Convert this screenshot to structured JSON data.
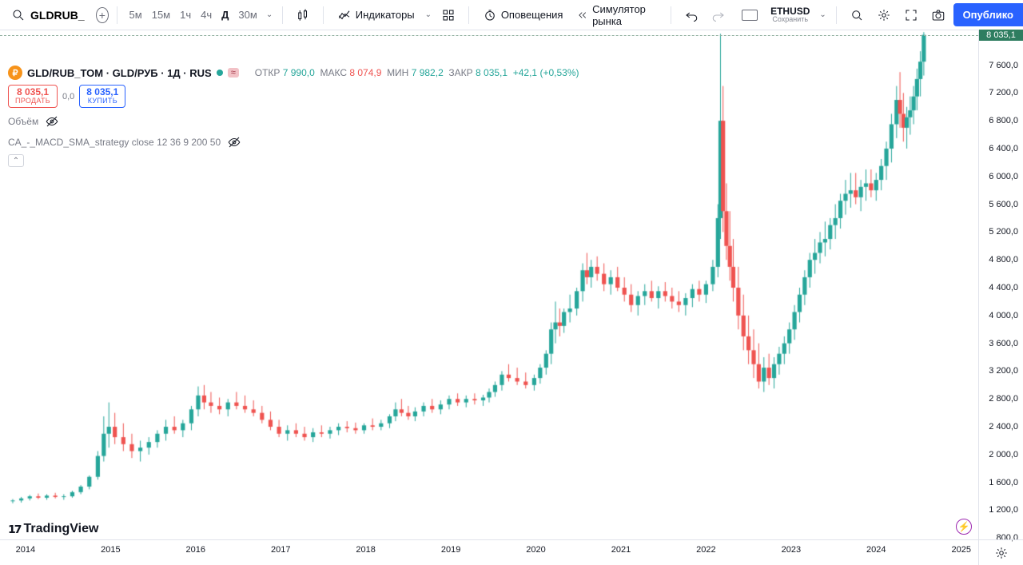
{
  "toolbar": {
    "symbol": "GLDRUB_",
    "timeframes": [
      "5м",
      "15м",
      "1ч",
      "4ч",
      "Д",
      "30м"
    ],
    "active_tf_index": 4,
    "indicators_label": "Индикаторы",
    "alerts_label": "Оповещения",
    "replay_label": "Симулятор рынка",
    "compare_symbol": "ETHUSD",
    "compare_sub": "Сохранить",
    "publish_label": "Опублико"
  },
  "legend": {
    "title": "GLD/RUB_TOM · GLD/РУБ · 1Д · RUS",
    "pill": "≈",
    "ohlc_labels": {
      "o": "ОТКР",
      "h": "МАКС",
      "l": "МИН",
      "c": "ЗАКР"
    },
    "open": "7 990,0",
    "high": "8 074,9",
    "low": "7 982,2",
    "close": "8 035,1",
    "change": "+42,1",
    "change_pct": "(+0,53%)",
    "sell_price": "8 035,1",
    "sell_label": "ПРОДАТЬ",
    "spread": "0,0",
    "buy_price": "8 035,1",
    "buy_label": "КУПИТЬ",
    "volume_label": "Объём",
    "strategy_label": "CA_-_MACD_SMA_strategy close 12 36 9 200 50"
  },
  "axis": {
    "currency": "RUB",
    "y_ticks": [
      800,
      1200,
      1600,
      2000,
      2400,
      2800,
      3200,
      3600,
      4000,
      4400,
      4800,
      5200,
      5600,
      6000,
      6400,
      6800,
      7200,
      7600
    ],
    "y_min": 780,
    "y_max": 8100,
    "current_price": "8 035,1",
    "current_price_num": 8035.1,
    "x_years": [
      2014,
      2015,
      2016,
      2017,
      2018,
      2019,
      2020,
      2021,
      2022,
      2023,
      2024,
      2025
    ],
    "x_min": 2013.7,
    "x_max": 2025.2
  },
  "chart": {
    "up_color": "#26a69a",
    "down_color": "#ef5350",
    "line_width": 1,
    "data": [
      [
        2013.85,
        1330,
        1360,
        1300,
        1340
      ],
      [
        2013.95,
        1340,
        1390,
        1310,
        1370
      ],
      [
        2014.05,
        1370,
        1420,
        1340,
        1400
      ],
      [
        2014.15,
        1400,
        1440,
        1360,
        1380
      ],
      [
        2014.25,
        1380,
        1430,
        1350,
        1410
      ],
      [
        2014.35,
        1410,
        1450,
        1370,
        1390
      ],
      [
        2014.45,
        1390,
        1430,
        1350,
        1400
      ],
      [
        2014.55,
        1400,
        1480,
        1380,
        1460
      ],
      [
        2014.65,
        1460,
        1560,
        1430,
        1540
      ],
      [
        2014.75,
        1540,
        1700,
        1500,
        1680
      ],
      [
        2014.85,
        1680,
        2050,
        1640,
        1980
      ],
      [
        2014.92,
        1980,
        2550,
        1900,
        2300
      ],
      [
        2014.98,
        2300,
        2750,
        2100,
        2400
      ],
      [
        2015.05,
        2400,
        2600,
        2150,
        2250
      ],
      [
        2015.15,
        2250,
        2450,
        2050,
        2150
      ],
      [
        2015.25,
        2150,
        2300,
        1950,
        2050
      ],
      [
        2015.35,
        2050,
        2200,
        1900,
        2100
      ],
      [
        2015.45,
        2100,
        2250,
        2000,
        2180
      ],
      [
        2015.55,
        2180,
        2350,
        2100,
        2300
      ],
      [
        2015.65,
        2300,
        2500,
        2200,
        2400
      ],
      [
        2015.75,
        2400,
        2550,
        2300,
        2350
      ],
      [
        2015.85,
        2350,
        2500,
        2250,
        2450
      ],
      [
        2015.95,
        2450,
        2700,
        2350,
        2650
      ],
      [
        2016.03,
        2650,
        2980,
        2550,
        2850
      ],
      [
        2016.1,
        2850,
        3000,
        2650,
        2750
      ],
      [
        2016.18,
        2750,
        2900,
        2600,
        2700
      ],
      [
        2016.28,
        2700,
        2820,
        2580,
        2650
      ],
      [
        2016.38,
        2650,
        2800,
        2550,
        2750
      ],
      [
        2016.48,
        2750,
        2900,
        2650,
        2700
      ],
      [
        2016.58,
        2700,
        2850,
        2600,
        2650
      ],
      [
        2016.68,
        2650,
        2780,
        2550,
        2600
      ],
      [
        2016.78,
        2600,
        2700,
        2450,
        2500
      ],
      [
        2016.88,
        2500,
        2620,
        2350,
        2400
      ],
      [
        2016.98,
        2400,
        2500,
        2250,
        2300
      ],
      [
        2017.08,
        2300,
        2420,
        2200,
        2350
      ],
      [
        2017.18,
        2350,
        2450,
        2250,
        2300
      ],
      [
        2017.28,
        2300,
        2400,
        2200,
        2250
      ],
      [
        2017.38,
        2250,
        2380,
        2180,
        2320
      ],
      [
        2017.48,
        2320,
        2420,
        2250,
        2300
      ],
      [
        2017.58,
        2300,
        2400,
        2230,
        2350
      ],
      [
        2017.68,
        2350,
        2450,
        2280,
        2400
      ],
      [
        2017.78,
        2400,
        2480,
        2320,
        2380
      ],
      [
        2017.88,
        2380,
        2460,
        2300,
        2350
      ],
      [
        2017.98,
        2350,
        2450,
        2300,
        2420
      ],
      [
        2018.08,
        2420,
        2520,
        2350,
        2400
      ],
      [
        2018.18,
        2400,
        2500,
        2350,
        2450
      ],
      [
        2018.28,
        2450,
        2580,
        2380,
        2550
      ],
      [
        2018.35,
        2550,
        2750,
        2480,
        2650
      ],
      [
        2018.42,
        2650,
        2800,
        2550,
        2600
      ],
      [
        2018.5,
        2600,
        2700,
        2500,
        2550
      ],
      [
        2018.58,
        2550,
        2680,
        2480,
        2620
      ],
      [
        2018.68,
        2620,
        2750,
        2550,
        2700
      ],
      [
        2018.78,
        2700,
        2800,
        2600,
        2650
      ],
      [
        2018.88,
        2650,
        2780,
        2580,
        2720
      ],
      [
        2018.98,
        2720,
        2850,
        2650,
        2800
      ],
      [
        2019.08,
        2800,
        2880,
        2700,
        2750
      ],
      [
        2019.18,
        2750,
        2850,
        2680,
        2800
      ],
      [
        2019.28,
        2800,
        2880,
        2720,
        2780
      ],
      [
        2019.38,
        2780,
        2860,
        2700,
        2820
      ],
      [
        2019.45,
        2820,
        2950,
        2750,
        2900
      ],
      [
        2019.52,
        2900,
        3050,
        2830,
        3000
      ],
      [
        2019.6,
        3000,
        3200,
        2920,
        3150
      ],
      [
        2019.68,
        3150,
        3300,
        3050,
        3100
      ],
      [
        2019.78,
        3100,
        3250,
        3000,
        3050
      ],
      [
        2019.88,
        3050,
        3180,
        2950,
        3000
      ],
      [
        2019.98,
        3000,
        3150,
        2920,
        3100
      ],
      [
        2020.05,
        3100,
        3300,
        3020,
        3250
      ],
      [
        2020.12,
        3250,
        3500,
        3150,
        3450
      ],
      [
        2020.18,
        3450,
        3900,
        3300,
        3800
      ],
      [
        2020.23,
        3800,
        4200,
        3600,
        3900
      ],
      [
        2020.28,
        3900,
        4100,
        3700,
        3850
      ],
      [
        2020.33,
        3850,
        4100,
        3750,
        4050
      ],
      [
        2020.4,
        4050,
        4300,
        3900,
        4100
      ],
      [
        2020.48,
        4100,
        4400,
        4000,
        4350
      ],
      [
        2020.55,
        4350,
        4750,
        4200,
        4650
      ],
      [
        2020.6,
        4650,
        4900,
        4450,
        4550
      ],
      [
        2020.65,
        4550,
        4800,
        4400,
        4700
      ],
      [
        2020.72,
        4700,
        4850,
        4500,
        4600
      ],
      [
        2020.8,
        4600,
        4750,
        4350,
        4450
      ],
      [
        2020.88,
        4450,
        4650,
        4300,
        4550
      ],
      [
        2020.96,
        4550,
        4700,
        4350,
        4400
      ],
      [
        2021.04,
        4400,
        4550,
        4200,
        4300
      ],
      [
        2021.12,
        4300,
        4450,
        4050,
        4150
      ],
      [
        2021.2,
        4150,
        4350,
        4000,
        4280
      ],
      [
        2021.28,
        4280,
        4450,
        4150,
        4350
      ],
      [
        2021.36,
        4350,
        4500,
        4200,
        4250
      ],
      [
        2021.44,
        4250,
        4420,
        4100,
        4350
      ],
      [
        2021.52,
        4350,
        4480,
        4200,
        4280
      ],
      [
        2021.6,
        4280,
        4400,
        4100,
        4200
      ],
      [
        2021.68,
        4200,
        4350,
        4050,
        4150
      ],
      [
        2021.76,
        4150,
        4320,
        4000,
        4250
      ],
      [
        2021.84,
        4250,
        4450,
        4120,
        4380
      ],
      [
        2021.92,
        4380,
        4500,
        4200,
        4300
      ],
      [
        2022.0,
        4300,
        4500,
        4180,
        4450
      ],
      [
        2022.08,
        4450,
        4800,
        4350,
        4700
      ],
      [
        2022.14,
        4700,
        5600,
        4550,
        5400
      ],
      [
        2022.17,
        5400,
        8050,
        5100,
        6800
      ],
      [
        2022.2,
        6800,
        7300,
        5200,
        5500
      ],
      [
        2022.24,
        5500,
        5900,
        4800,
        5000
      ],
      [
        2022.28,
        5000,
        5500,
        4500,
        4700
      ],
      [
        2022.32,
        4700,
        5100,
        4200,
        4400
      ],
      [
        2022.38,
        4400,
        4700,
        3800,
        4000
      ],
      [
        2022.44,
        4000,
        4300,
        3500,
        3700
      ],
      [
        2022.5,
        3700,
        4000,
        3300,
        3500
      ],
      [
        2022.56,
        3500,
        3800,
        3100,
        3300
      ],
      [
        2022.62,
        3300,
        3600,
        2950,
        3050
      ],
      [
        2022.68,
        3050,
        3400,
        2900,
        3250
      ],
      [
        2022.74,
        3250,
        3450,
        3000,
        3100
      ],
      [
        2022.8,
        3100,
        3400,
        2950,
        3300
      ],
      [
        2022.86,
        3300,
        3550,
        3150,
        3450
      ],
      [
        2022.92,
        3450,
        3700,
        3300,
        3600
      ],
      [
        2022.98,
        3600,
        3900,
        3450,
        3800
      ],
      [
        2023.04,
        3800,
        4150,
        3650,
        4050
      ],
      [
        2023.1,
        4050,
        4400,
        3900,
        4300
      ],
      [
        2023.16,
        4300,
        4650,
        4150,
        4550
      ],
      [
        2023.22,
        4550,
        4900,
        4400,
        4800
      ],
      [
        2023.28,
        4800,
        5100,
        4600,
        4900
      ],
      [
        2023.34,
        4900,
        5200,
        4750,
        5050
      ],
      [
        2023.4,
        5050,
        5350,
        4850,
        5100
      ],
      [
        2023.46,
        5100,
        5400,
        4950,
        5300
      ],
      [
        2023.52,
        5300,
        5600,
        5100,
        5400
      ],
      [
        2023.58,
        5400,
        5750,
        5250,
        5650
      ],
      [
        2023.64,
        5650,
        5950,
        5450,
        5750
      ],
      [
        2023.7,
        5750,
        6050,
        5550,
        5800
      ],
      [
        2023.76,
        5800,
        6050,
        5600,
        5700
      ],
      [
        2023.82,
        5700,
        5950,
        5500,
        5850
      ],
      [
        2023.88,
        5850,
        6100,
        5650,
        5900
      ],
      [
        2023.94,
        5900,
        6100,
        5700,
        5800
      ],
      [
        2024.0,
        5800,
        6050,
        5650,
        5950
      ],
      [
        2024.06,
        5950,
        6250,
        5800,
        6150
      ],
      [
        2024.12,
        6150,
        6500,
        5950,
        6400
      ],
      [
        2024.18,
        6400,
        6900,
        6200,
        6750
      ],
      [
        2024.24,
        6750,
        7300,
        6550,
        7100
      ],
      [
        2024.28,
        7100,
        7500,
        6700,
        6900
      ],
      [
        2024.32,
        6900,
        7200,
        6500,
        6700
      ],
      [
        2024.36,
        6700,
        7000,
        6400,
        6850
      ],
      [
        2024.4,
        6850,
        7150,
        6600,
        6950
      ],
      [
        2024.44,
        6950,
        7300,
        6750,
        7150
      ],
      [
        2024.48,
        7150,
        7550,
        6950,
        7400
      ],
      [
        2024.52,
        7400,
        7800,
        7150,
        7650
      ],
      [
        2024.56,
        7650,
        8075,
        7450,
        8035
      ]
    ]
  }
}
